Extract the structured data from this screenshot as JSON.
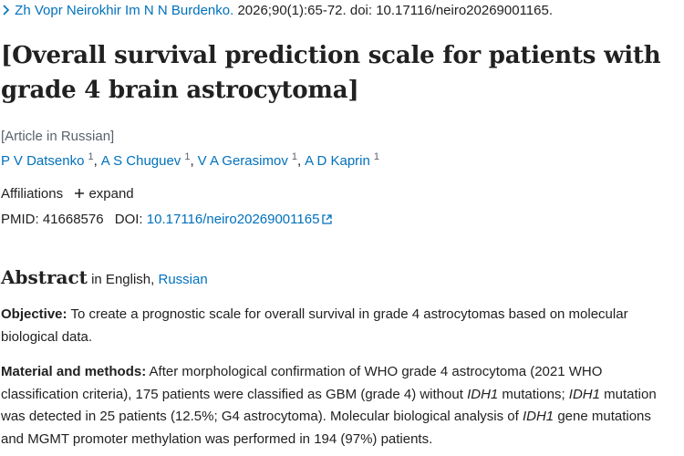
{
  "header": {
    "journal": "Zh Vopr Neirokhir Im N N Burdenko.",
    "citation": "2026;90(1):65-72. doi: 10.17116/neiro20269001165."
  },
  "title": "[Overall survival prediction scale for patients with grade 4 brain astrocytoma]",
  "language_note": "[Article in Russian]",
  "authors": [
    {
      "name": "P V Datsenko",
      "aff": "1"
    },
    {
      "name": "A S Chuguev",
      "aff": "1"
    },
    {
      "name": "V A Gerasimov",
      "aff": "1"
    },
    {
      "name": "A D Kaprin",
      "aff": "1"
    }
  ],
  "affiliations": {
    "label": "Affiliations",
    "toggle": "expand"
  },
  "identifiers": {
    "pmid_label": "PMID:",
    "pmid": "41668576",
    "doi_label": "DOI:",
    "doi": "10.17116/neiro20269001165"
  },
  "abstract": {
    "heading": "Abstract",
    "lang_prefix": "in English,",
    "lang_link": "Russian",
    "paragraphs": [
      {
        "label": "Objective:",
        "segments": [
          {
            "text": "To create a prognostic scale for overall survival in grade 4 astrocytomas based on molecular biological data."
          }
        ]
      },
      {
        "label": "Material and methods:",
        "segments": [
          {
            "text": "After morphological confirmation of WHO grade 4 astrocytoma (2021 WHO classification criteria), 175 patients were classified as GBM (grade 4) without "
          },
          {
            "text": "IDH1",
            "italic": true
          },
          {
            "text": " mutations; "
          },
          {
            "text": "IDH1",
            "italic": true
          },
          {
            "text": " mutation was detected in 25 patients (12.5%; G4 astrocytoma). Molecular biological analysis of "
          },
          {
            "text": "IDH1",
            "italic": true
          },
          {
            "text": " gene mutations and MGMT promoter methylation was performed in 194 (97%) patients."
          }
        ]
      }
    ]
  }
}
